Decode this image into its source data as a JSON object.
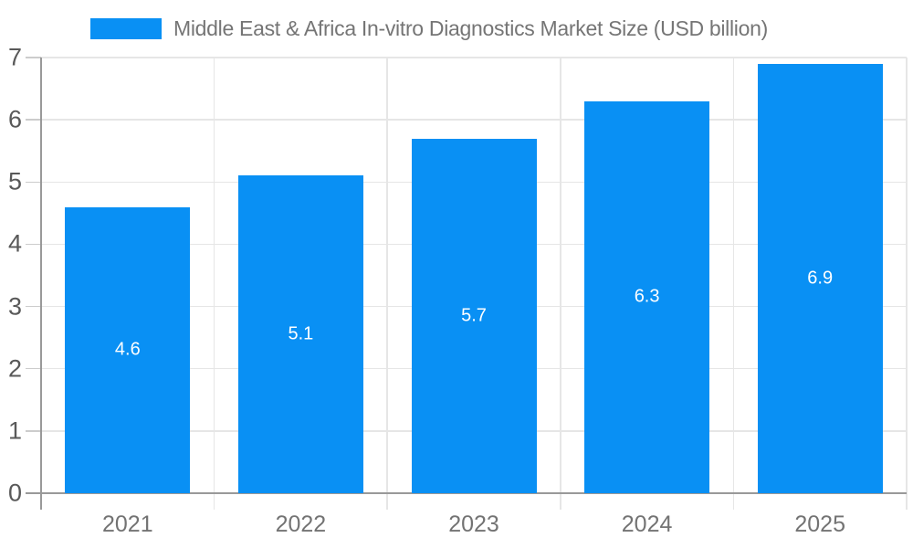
{
  "legend": {
    "label": "Middle East & Africa In-vitro Diagnostics Market Size (USD billion)"
  },
  "chart_data": {
    "type": "bar",
    "title": "Middle East & Africa In-vitro Diagnostics Market Size (USD billion)",
    "categories": [
      "2021",
      "2022",
      "2023",
      "2024",
      "2025"
    ],
    "values": [
      4.6,
      5.1,
      5.7,
      6.3,
      6.9
    ],
    "value_labels": [
      "4.6",
      "5.1",
      "5.7",
      "6.3",
      "6.9"
    ],
    "xlabel": "",
    "ylabel": "",
    "ylim": [
      0,
      7
    ],
    "y_ticks": [
      0,
      1,
      2,
      3,
      4,
      5,
      6,
      7
    ],
    "grid": true,
    "legend_position": "top",
    "colors": {
      "bar": "#0990f4",
      "legend_text": "#757575",
      "gridline": "#e6e6e6",
      "tick_mark": "#cccccc",
      "axis_line": "#999999",
      "y_tick_label": "#595959",
      "x_tick_label": "#737373",
      "data_label": "#ffffff",
      "background": "#ffffff"
    }
  }
}
